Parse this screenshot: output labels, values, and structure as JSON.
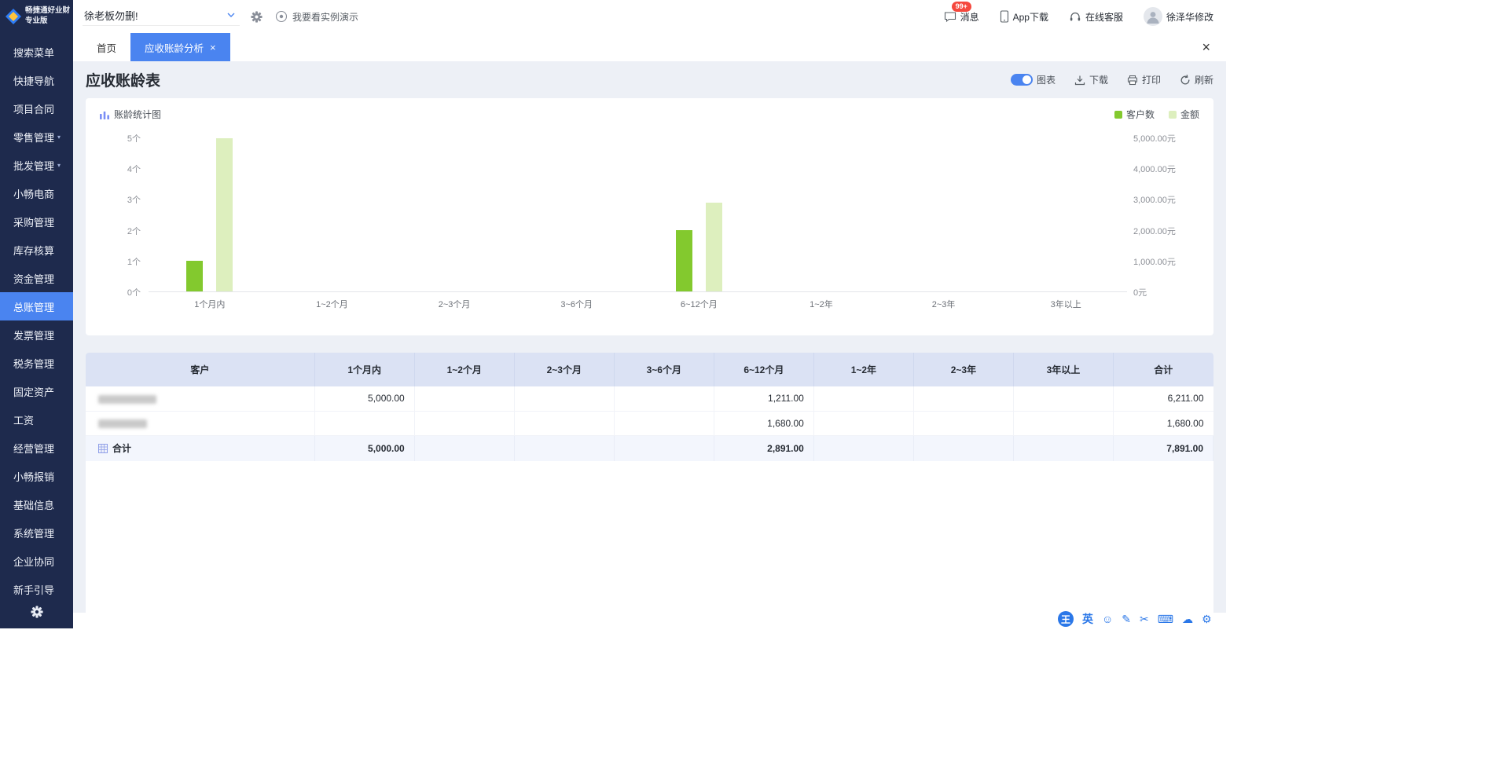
{
  "app": {
    "logo_line1": "畅捷通好业财",
    "logo_line2": "专业版"
  },
  "colors": {
    "accent_blue": "#4a84f0",
    "sidebar_bg": "#1e2a4d",
    "badge_red": "#f5483d",
    "bar_green": "#83c92e",
    "bar_light_green": "#ddefbe",
    "table_header_bg": "#dbe2f4"
  },
  "sidebar": {
    "items": [
      {
        "label": "搜索菜单"
      },
      {
        "label": "快捷导航"
      },
      {
        "label": "项目合同"
      },
      {
        "label": "零售管理",
        "has_arrow": true
      },
      {
        "label": "批发管理",
        "has_arrow": true
      },
      {
        "label": "小畅电商"
      },
      {
        "label": "采购管理"
      },
      {
        "label": "库存核算"
      },
      {
        "label": "资金管理"
      },
      {
        "label": "总账管理",
        "active": true
      },
      {
        "label": "发票管理"
      },
      {
        "label": "税务管理"
      },
      {
        "label": "固定资产"
      },
      {
        "label": "工资"
      },
      {
        "label": "经营管理"
      },
      {
        "label": "小畅报销"
      },
      {
        "label": "基础信息"
      },
      {
        "label": "系统管理"
      },
      {
        "label": "企业协同"
      },
      {
        "label": "新手引导"
      }
    ]
  },
  "topbar": {
    "company_select": "徐老板勿删!",
    "demo_link": "我要看实例演示",
    "messages_label": "消息",
    "messages_badge": "99+",
    "app_download_label": "App下载",
    "support_label": "在线客服",
    "username": "徐泽华修改"
  },
  "tabs": [
    {
      "label": "首页",
      "active": false,
      "closable": false
    },
    {
      "label": "应收账龄分析",
      "active": true,
      "closable": true
    }
  ],
  "page": {
    "title": "应收账龄表",
    "toggle_label": "图表",
    "download_label": "下载",
    "print_label": "打印",
    "refresh_label": "刷新"
  },
  "chart_data": {
    "type": "bar",
    "title": "账龄统计图",
    "categories": [
      "1个月内",
      "1~2个月",
      "2~3个月",
      "3~6个月",
      "6~12个月",
      "1~2年",
      "2~3年",
      "3年以上"
    ],
    "series": [
      {
        "name": "客户数",
        "color": "#83c92e",
        "axis": "left",
        "values": [
          1,
          0,
          0,
          0,
          2,
          0,
          0,
          0
        ]
      },
      {
        "name": "金额",
        "color": "#ddefbe",
        "axis": "right",
        "values": [
          5000,
          0,
          0,
          0,
          2891,
          0,
          0,
          0
        ]
      }
    ],
    "left_axis": {
      "max": 5,
      "unit": "个",
      "ticks": [
        "5个",
        "4个",
        "3个",
        "2个",
        "1个",
        "0个"
      ]
    },
    "right_axis": {
      "max": 5000,
      "unit": "元",
      "ticks": [
        "5,000.00元",
        "4,000.00元",
        "3,000.00元",
        "2,000.00元",
        "1,000.00元",
        "0元"
      ]
    },
    "legend_position": "top-right",
    "grid": false
  },
  "table": {
    "headers": [
      "客户",
      "1个月内",
      "1~2个月",
      "2~3个月",
      "3~6个月",
      "6~12个月",
      "1~2年",
      "2~3年",
      "3年以上",
      "合计"
    ],
    "rows": [
      {
        "customer_redacted": true,
        "values": [
          "5,000.00",
          "",
          "",
          "",
          "1,211.00",
          "",
          "",
          "",
          "6,211.00"
        ]
      },
      {
        "customer_redacted": true,
        "values": [
          "",
          "",
          "",
          "",
          "1,680.00",
          "",
          "",
          "",
          "1,680.00"
        ]
      }
    ],
    "total_row": {
      "label": "合计",
      "values": [
        "5,000.00",
        "",
        "",
        "",
        "2,891.00",
        "",
        "",
        "",
        "7,891.00"
      ]
    }
  },
  "ime_bar": {
    "logo_char": "王",
    "lang": "英"
  }
}
